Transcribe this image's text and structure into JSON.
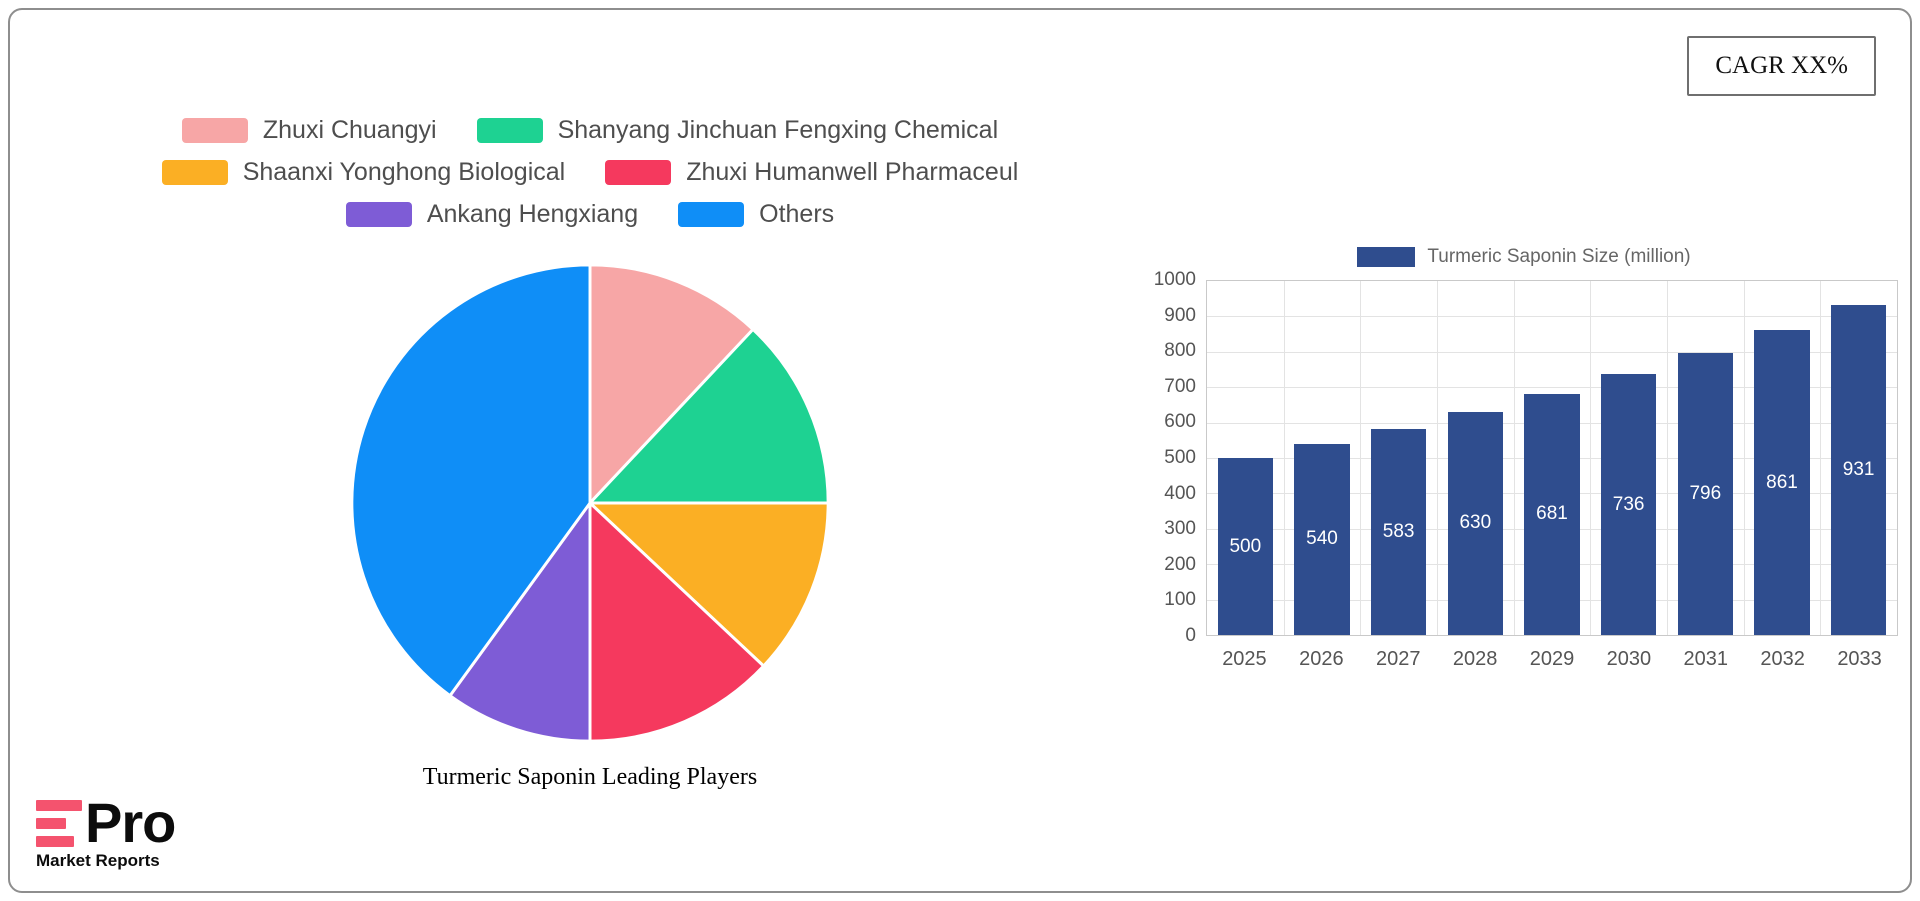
{
  "cagr_label": "CAGR XX%",
  "logo": {
    "title": "Pro",
    "subtitle": "Market Reports"
  },
  "chart_data": [
    {
      "type": "pie",
      "title": "Turmeric Saponin Leading Players",
      "legend_position": "top",
      "slices": [
        {
          "label": "Zhuxi Chuangyi",
          "value": 12,
          "color": "#f7a6a6"
        },
        {
          "label": "Shanyang Jinchuan Fengxing Chemical",
          "value": 13,
          "color": "#1ed292"
        },
        {
          "label": "Shaanxi Yonghong Biological",
          "value": 12,
          "color": "#fbaf24"
        },
        {
          "label": "Zhuxi Humanwell Pharmaceul",
          "value": 13,
          "color": "#f5395e"
        },
        {
          "label": "Ankang Hengxiang",
          "value": 10,
          "color": "#7e5cd6"
        },
        {
          "label": "Others",
          "value": 40,
          "color": "#0f8ef7"
        }
      ]
    },
    {
      "type": "bar",
      "title": "Turmeric Saponin Size (million)",
      "categories": [
        "2025",
        "2026",
        "2027",
        "2028",
        "2029",
        "2030",
        "2031",
        "2032",
        "2033"
      ],
      "values": [
        500,
        540,
        583,
        630,
        681,
        736,
        796,
        861,
        931
      ],
      "bar_color": "#2f4d8e",
      "ylim": [
        0,
        1000
      ],
      "ytick_step": 100,
      "grid": true,
      "legend_position": "top",
      "xlabel": "",
      "ylabel": ""
    }
  ]
}
